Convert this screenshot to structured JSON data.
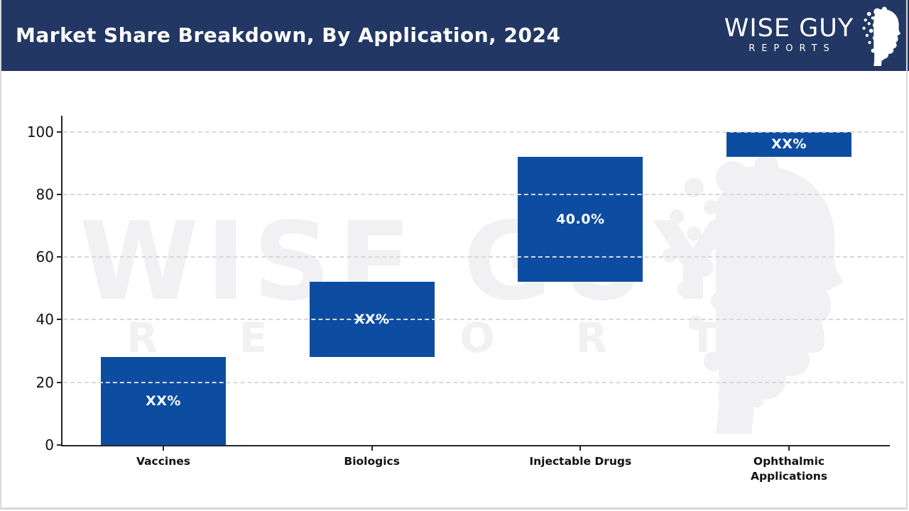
{
  "header": {
    "title": "Market Share Breakdown, By Application, 2024",
    "logo_line1": "WISE GUY",
    "logo_line2": "REPORTS"
  },
  "watermark": {
    "line1": "WISE GUY",
    "line2": "R E P O R T S"
  },
  "colors": {
    "header_bg": "#223763",
    "bar_blue": "#0c4da2",
    "gridline": "#d8d8d8",
    "axis": "#262626",
    "watermark_gray": "#f1f1f3",
    "label_white": "#ffffff"
  },
  "chart_data": {
    "type": "bar",
    "subtype": "floating-segment (waterfall-style) column chart",
    "title": "Market Share Breakdown, By Application, 2024",
    "xlabel": "",
    "ylabel": "",
    "ylim": [
      0,
      100
    ],
    "yticks": [
      0,
      20,
      40,
      60,
      80,
      100
    ],
    "grid": "horizontal dashed, drawn over bars",
    "legend": "none",
    "categories": [
      "Vaccines",
      "Biologics",
      "Injectable Drugs",
      "Ophthalmic Applications"
    ],
    "segments": [
      {
        "category": "Vaccines",
        "start": 0,
        "end": 28,
        "value": 28,
        "label": "XX%"
      },
      {
        "category": "Biologics",
        "start": 28,
        "end": 52,
        "value": 24,
        "label": "XX%"
      },
      {
        "category": "Injectable Drugs",
        "start": 52,
        "end": 92,
        "value": 40,
        "label": "40.0%"
      },
      {
        "category": "Ophthalmic Applications",
        "start": 92,
        "end": 100,
        "value": 8,
        "label": "XX%"
      }
    ]
  }
}
